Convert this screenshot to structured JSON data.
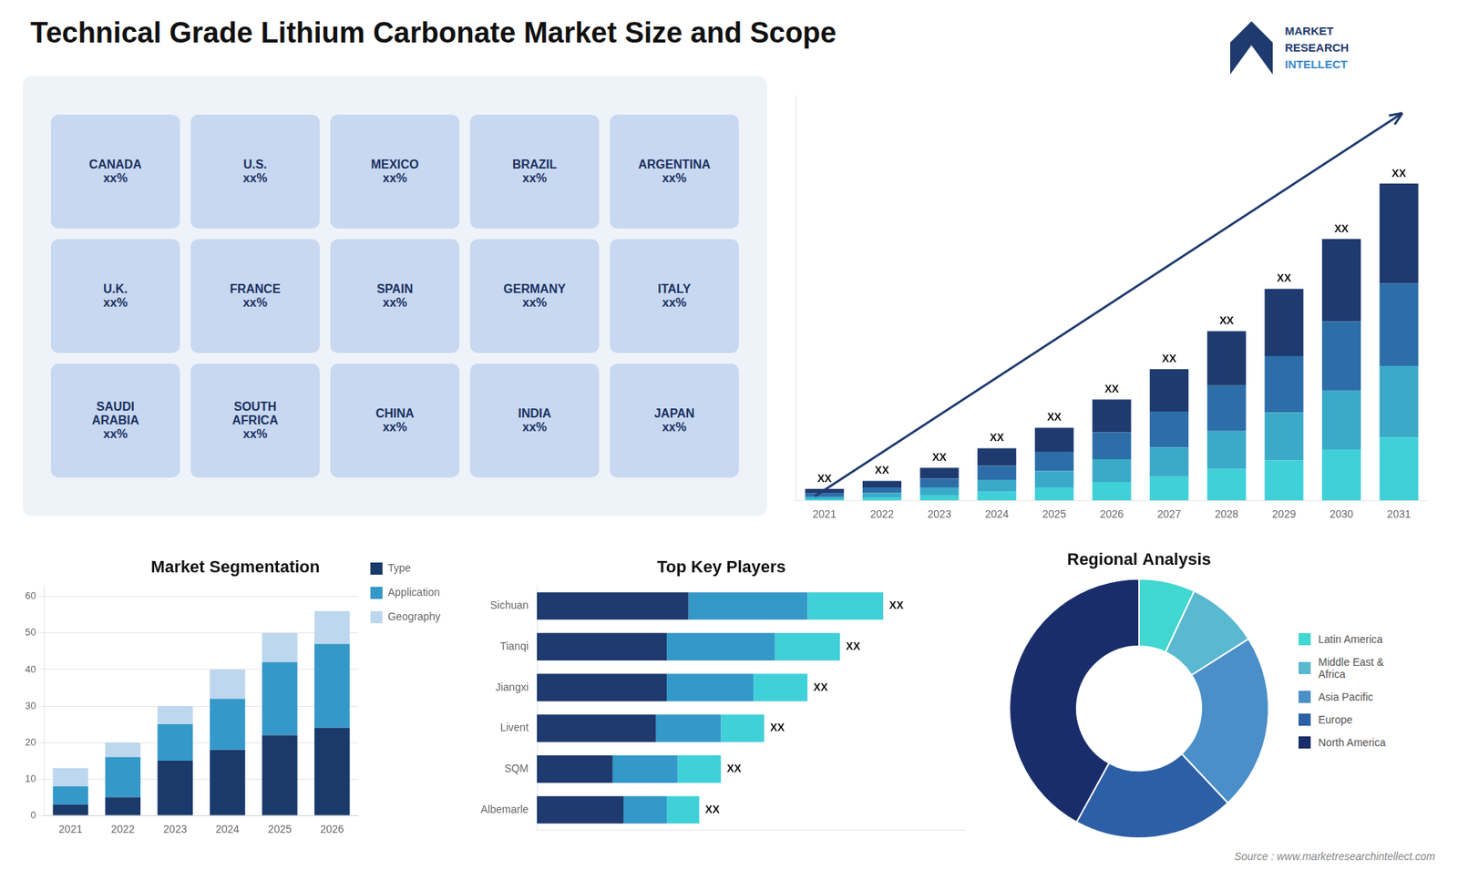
{
  "chart_data": [
    {
      "type": "map",
      "title": "Technical Grade Lithium Carbonate Market Size and Scope",
      "annotations": [
        "CANADA\nxx%",
        "U.S.\nxx%",
        "MEXICO\nxx%",
        "BRAZIL\nxx%",
        "ARGENTINA\nxx%",
        "U.K.\nxx%",
        "FRANCE\nxx%",
        "SPAIN\nxx%",
        "GERMANY\nxx%",
        "ITALY\nxx%",
        "SAUDI\nARABIA\nxx%",
        "SOUTH\nAFRICA\nxx%",
        "CHINA\nxx%",
        "INDIA\nxx%",
        "JAPAN\nxx%"
      ]
    },
    {
      "type": "logo",
      "annotations": [
        "MARKET",
        "RESEARCH",
        "INTELLECT"
      ]
    },
    {
      "type": "bar",
      "categories": [
        "2021",
        "2022",
        "2023",
        "2024",
        "2025",
        "2026",
        "2027",
        "2028",
        "2029",
        "2030",
        "2031"
      ],
      "series": [
        {
          "color": "#40d0d8",
          "values": [
            0.8,
            1.5,
            2.5,
            4.0,
            6.0,
            8.5,
            11.0,
            14.5,
            18.5,
            23.5,
            29.0
          ]
        },
        {
          "color": "#3aaac8",
          "values": [
            1.0,
            2.0,
            3.5,
            5.5,
            7.5,
            10.5,
            13.5,
            17.5,
            22.0,
            27.0,
            33.0
          ]
        },
        {
          "color": "#2d6ea8",
          "values": [
            1.5,
            2.5,
            4.0,
            6.5,
            9.0,
            12.5,
            16.5,
            21.0,
            26.0,
            32.0,
            38.0
          ]
        },
        {
          "color": "#1e3a6e",
          "values": [
            2.0,
            3.0,
            5.0,
            8.0,
            11.0,
            15.0,
            19.5,
            25.0,
            31.0,
            38.0,
            46.0
          ]
        }
      ],
      "stacked": true,
      "ylim": [
        0,
        186.88
      ],
      "yticks": [],
      "tick_labels": "x",
      "grid": false,
      "annotations": [
        "XX",
        "XX",
        "XX",
        "XX",
        "XX",
        "XX",
        "XX",
        "XX",
        "XX",
        "XX",
        "XX"
      ]
    },
    {
      "type": "bar",
      "title": "Market Segmentation",
      "categories": [
        "2021",
        "2022",
        "2023",
        "2024",
        "2025",
        "2026"
      ],
      "series": [
        {
          "name": "Type",
          "color": "#1a3a6b",
          "values": [
            3,
            5,
            15,
            18,
            22,
            24
          ]
        },
        {
          "name": "Application",
          "color": "#3498c8",
          "values": [
            5,
            11,
            10,
            14,
            20,
            23
          ]
        },
        {
          "name": "Geography",
          "color": "#bdd7ee",
          "values": [
            5,
            4,
            5,
            8,
            8,
            9
          ]
        }
      ],
      "stacked": true,
      "ylim": [
        0,
        63
      ],
      "yticks": [
        0,
        10,
        20,
        30,
        40,
        50,
        60
      ],
      "grid": true,
      "legend": "right"
    },
    {
      "type": "bar",
      "title": "Top Key Players",
      "orientation": "horizontal",
      "categories": [
        "Sichuan",
        "Tianqi",
        "Jiangxi",
        "Livent",
        "SQM",
        "Albemarle"
      ],
      "series": [
        {
          "color": "#1e3a6e",
          "values": [
            28,
            24,
            24,
            22,
            14,
            16
          ]
        },
        {
          "color": "#3498c8",
          "values": [
            22,
            20,
            16,
            12,
            12,
            8
          ]
        },
        {
          "color": "#40d0d8",
          "values": [
            14,
            12,
            10,
            8,
            8,
            6
          ]
        }
      ],
      "stacked": true,
      "xlim": [
        0,
        79
      ],
      "xticks": [],
      "tick_labels": "y",
      "grid": false,
      "annotations": [
        "XX",
        "XX",
        "XX",
        "XX",
        "XX",
        "XX"
      ]
    },
    {
      "type": "doughnut",
      "title": "Regional Analysis",
      "categories": [
        "Latin America",
        "Middle East &\nAfrica",
        "Asia Pacific",
        "Europe",
        "North America"
      ],
      "values": [
        7,
        9,
        22,
        20,
        42
      ],
      "colors": [
        "#40d8d0",
        "#5ab8d0",
        "#4a8fc8",
        "#2d5fa6",
        "#1a2d6b"
      ],
      "legend": "right"
    },
    {
      "type": "source",
      "annotations": [
        "Source : www.marketresearchintellect.com"
      ]
    }
  ]
}
